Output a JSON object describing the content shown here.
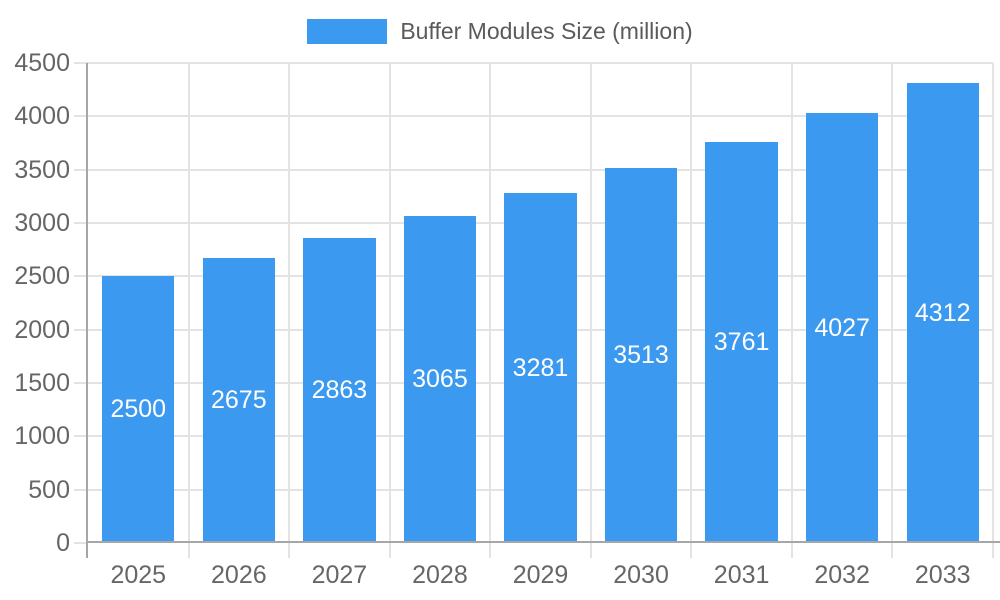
{
  "legend": {
    "label": "Buffer Modules Size (million)"
  },
  "chart_data": {
    "type": "bar",
    "title": "Buffer Modules Size (million)",
    "categories": [
      "2025",
      "2026",
      "2027",
      "2028",
      "2029",
      "2030",
      "2031",
      "2032",
      "2033"
    ],
    "values": [
      2500,
      2675,
      2863,
      3065,
      3281,
      3513,
      3761,
      4027,
      4312
    ],
    "series": [
      {
        "name": "Buffer Modules Size (million)",
        "values": [
          2500,
          2675,
          2863,
          3065,
          3281,
          3513,
          3761,
          4027,
          4312
        ]
      }
    ],
    "xlabel": "",
    "ylabel": "",
    "ylim": [
      0,
      4500
    ],
    "yticks": [
      0,
      500,
      1000,
      1500,
      2000,
      2500,
      3000,
      3500,
      4000,
      4500
    ],
    "grid": true,
    "legend_position": "top-center",
    "bar_labels_visible": true,
    "bar_label_position": "center-inside"
  },
  "colors": {
    "bar": "#3B99EF",
    "bar_label": "#FFFFFF",
    "grid": "#E3E3E3",
    "axis": "#A6A6A6",
    "axis_text": "#666666",
    "legend_text": "#5A5A5A",
    "background": "#FFFFFF"
  }
}
